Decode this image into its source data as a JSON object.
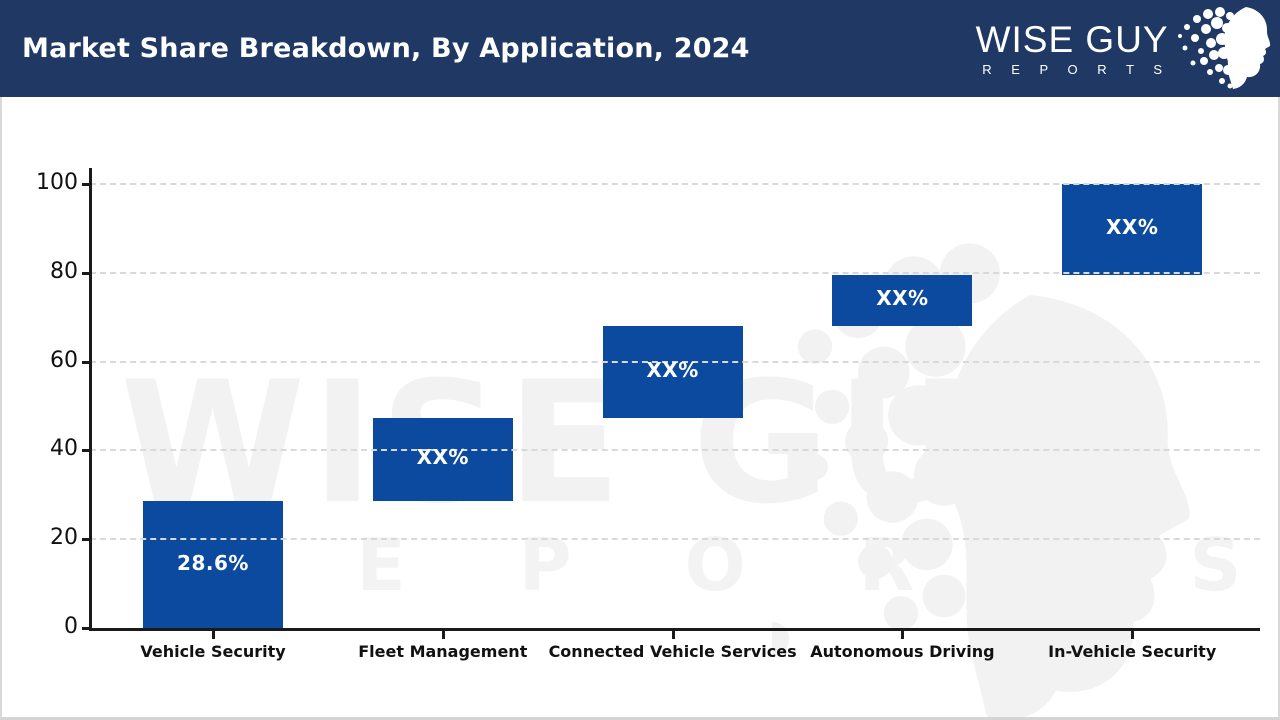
{
  "header": {
    "title": "Market Share Breakdown, By Application, 2024"
  },
  "logo": {
    "brand": "WISE GUY",
    "sub": "R E P O R T S",
    "face_icon": "dotted-head-profile"
  },
  "watermark": {
    "line1": "WISE GUY",
    "line2": "R E P O R T S",
    "face_icon": "dotted-head-profile"
  },
  "colors": {
    "header_bg": "#1F3864",
    "bar_blue": "#0B4A9E",
    "bar_label_text": "#FFFFFF",
    "axis": "#1A1A1A",
    "gridline": "#D9D9D9",
    "watermark": "#F2F2F2",
    "page_border": "#D9D9D9"
  },
  "chart_data": {
    "type": "bar",
    "subtype": "waterfall",
    "title": "Market Share Breakdown, By Application, 2024",
    "xlabel": "",
    "ylabel": "",
    "ylim": [
      0,
      105
    ],
    "yticks": [
      0,
      20,
      40,
      60,
      80,
      100
    ],
    "grid": "horizontal dashed, drawn above bars",
    "legend": "none",
    "categories": [
      "Vehicle Security",
      "Fleet Management",
      "Connected Vehicle Services",
      "Autonomous Driving",
      "In-Vehicle Security"
    ],
    "segments": [
      {
        "category": "Vehicle Security",
        "start": 0,
        "end": 28.6,
        "value": 28.6,
        "label": "28.6%"
      },
      {
        "category": "Fleet Management",
        "start": 28.6,
        "end": 47.4,
        "value": 18.8,
        "label": "XX%"
      },
      {
        "category": "Connected Vehicle Services",
        "start": 47.4,
        "end": 68.0,
        "value": 20.6,
        "label": "XX%"
      },
      {
        "category": "Autonomous Driving",
        "start": 68.0,
        "end": 79.6,
        "value": 11.6,
        "label": "XX%"
      },
      {
        "category": "In-Vehicle Security",
        "start": 79.6,
        "end": 100.0,
        "value": 20.4,
        "label": "XX%"
      }
    ]
  }
}
